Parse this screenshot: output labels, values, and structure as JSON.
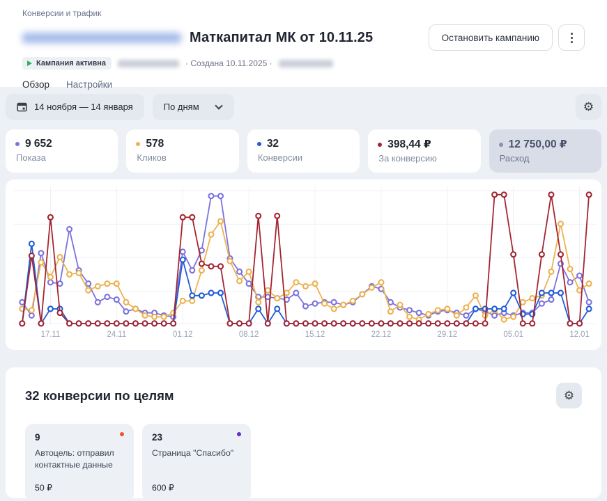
{
  "breadcrumb": "Конверсии и трафик",
  "header": {
    "title": "Маткапитал МК от 10.11.25",
    "status_badge": "Кампания активна",
    "created_text": "· Создана 10.11.2025 ·",
    "stop_button": "Остановить кампанию",
    "tabs": [
      {
        "label": "Обзор",
        "active": true
      },
      {
        "label": "Настройки",
        "active": false
      }
    ]
  },
  "toolbar": {
    "date_range": "14 ноября — 14 января",
    "granularity": "По дням",
    "gear_icon": "⚙"
  },
  "stats": [
    {
      "value": "9 652",
      "label": "Показа",
      "color": "#7a72de",
      "selected": false
    },
    {
      "value": "578",
      "label": "Кликов",
      "color": "#edb14e",
      "selected": false
    },
    {
      "value": "32",
      "label": "Конверсии",
      "color": "#1f5bd4",
      "selected": false
    },
    {
      "value": "398,44 ₽",
      "label": "За конверсию",
      "color": "#a32430",
      "selected": false
    },
    {
      "value": "12 750,00 ₽",
      "label": "Расход",
      "color": "#8793a8",
      "selected": true
    }
  ],
  "chart_data": {
    "type": "line",
    "x_unit": "day",
    "x_range": "14.11 — 13.01",
    "tick_labels": [
      "17.11",
      "24.11",
      "01.12",
      "08.12",
      "15.12",
      "22.12",
      "29.12",
      "05.01",
      "12.01"
    ],
    "tick_indices": [
      3,
      10,
      17,
      24,
      31,
      38,
      45,
      52,
      59
    ],
    "ylim": [
      0,
      100
    ],
    "y_note": "relative scale 0-100 of plot height, no y axis labels shown",
    "grid": true,
    "legend_position": "none",
    "marker": "open-circle",
    "series": [
      {
        "name": "Показы",
        "color": "#7a72de",
        "values": [
          16,
          6,
          53,
          31,
          30,
          71,
          40,
          30,
          16,
          20,
          18,
          9,
          11,
          8,
          8,
          6,
          5,
          54,
          40,
          55,
          96,
          96,
          49,
          39,
          30,
          20,
          20,
          19,
          18,
          23,
          13,
          15,
          16,
          16,
          14,
          16,
          22,
          28,
          26,
          16,
          12,
          10,
          8,
          6,
          9,
          10,
          8,
          6,
          11,
          9,
          6,
          8,
          6,
          8,
          8,
          15,
          18,
          45,
          31,
          36,
          16
        ]
      },
      {
        "name": "Клики",
        "color": "#edb14e",
        "values": [
          11,
          10,
          46,
          35,
          50,
          37,
          38,
          25,
          28,
          30,
          30,
          16,
          11,
          6,
          5,
          5,
          8,
          17,
          17,
          40,
          67,
          77,
          47,
          32,
          39,
          16,
          25,
          19,
          23,
          31,
          28,
          30,
          15,
          11,
          14,
          17,
          22,
          27,
          31,
          9,
          14,
          5,
          3,
          7,
          10,
          11,
          6,
          12,
          21,
          6,
          10,
          3,
          5,
          16,
          19,
          21,
          39,
          75,
          41,
          25,
          30
        ]
      },
      {
        "name": "Конверсии",
        "color": "#1f5bd4",
        "values": [
          0,
          60,
          0,
          11,
          11,
          0,
          0,
          0,
          0,
          0,
          0,
          0,
          0,
          0,
          0,
          0,
          0,
          48,
          21,
          21,
          23,
          23,
          0,
          0,
          0,
          11,
          0,
          11,
          0,
          0,
          0,
          0,
          0,
          0,
          0,
          0,
          0,
          0,
          0,
          0,
          0,
          0,
          0,
          0,
          0,
          0,
          0,
          0,
          11,
          11,
          11,
          11,
          23,
          7,
          7,
          23,
          23,
          23,
          0,
          0,
          11
        ]
      },
      {
        "name": "За конверсию",
        "color": "#a32430",
        "values": [
          0,
          51,
          0,
          80,
          8,
          0,
          0,
          0,
          0,
          0,
          0,
          0,
          0,
          0,
          0,
          0,
          0,
          80,
          80,
          45,
          43,
          43,
          0,
          0,
          0,
          81,
          0,
          81,
          0,
          0,
          0,
          0,
          0,
          0,
          0,
          0,
          0,
          0,
          0,
          0,
          0,
          0,
          0,
          0,
          0,
          0,
          0,
          0,
          0,
          0,
          97,
          97,
          52,
          0,
          0,
          52,
          97,
          52,
          0,
          0,
          97
        ]
      }
    ]
  },
  "conversions": {
    "title": "32 конверсии по целям",
    "gear_icon": "⚙",
    "goals": [
      {
        "count": "9",
        "name": "Автоцель: отправил контактные данные",
        "price": "50 ₽",
        "color": "#f2542d"
      },
      {
        "count": "23",
        "name": "Страница \"Спасибо\"",
        "price": "600 ₽",
        "color": "#6231c8"
      }
    ]
  }
}
